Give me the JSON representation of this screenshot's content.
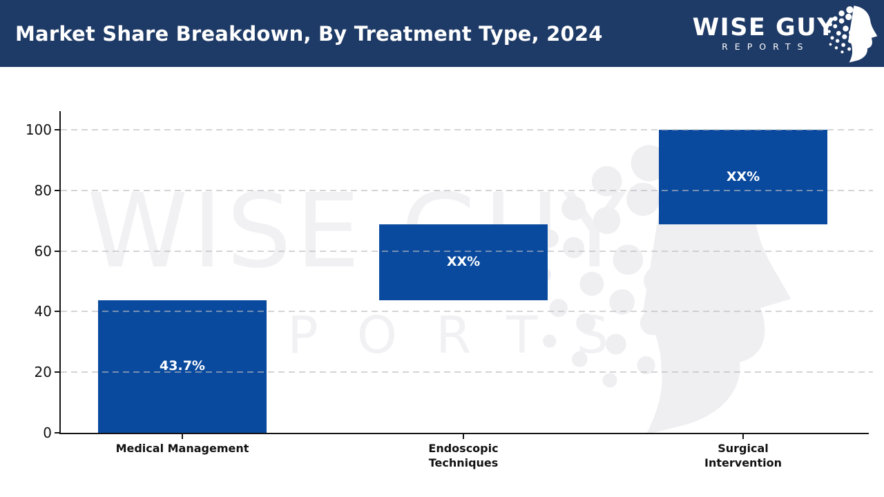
{
  "header": {
    "title": "Market Share Breakdown, By Treatment Type, 2024",
    "logo": {
      "name": "WISE GUY",
      "subtext": "REPORTS"
    }
  },
  "watermark": {
    "line1": "WISE GUY",
    "line2": "REPORTS"
  },
  "chart_data": {
    "type": "bar",
    "subtype": "waterfall",
    "title": "Market Share Breakdown, By Treatment Type, 2024",
    "categories": [
      "Medical Management",
      "Endoscopic\nTechniques",
      "Surgical\nIntervention"
    ],
    "bars": [
      {
        "category": "Medical Management",
        "start": 0,
        "end": 43.7,
        "label": "43.7%"
      },
      {
        "category": "Endoscopic Techniques",
        "start": 43.7,
        "end": 68.7,
        "label": "XX%"
      },
      {
        "category": "Surgical Intervention",
        "start": 68.7,
        "end": 100,
        "label": "XX%"
      }
    ],
    "xlabel": "",
    "ylabel": "",
    "ylim": [
      0,
      100
    ],
    "yticks": [
      0,
      20,
      40,
      60,
      80,
      100
    ],
    "grid": "horizontal-dashed",
    "legend": "none",
    "bar_color": "#0a4a9e",
    "bar_label_color": "#ffffff"
  },
  "colors": {
    "header_bg": "#1e3a66",
    "bar": "#0a4a9e",
    "gridline": "#d9d9d9",
    "axis": "#141414",
    "watermark": "#f1f1f4"
  }
}
